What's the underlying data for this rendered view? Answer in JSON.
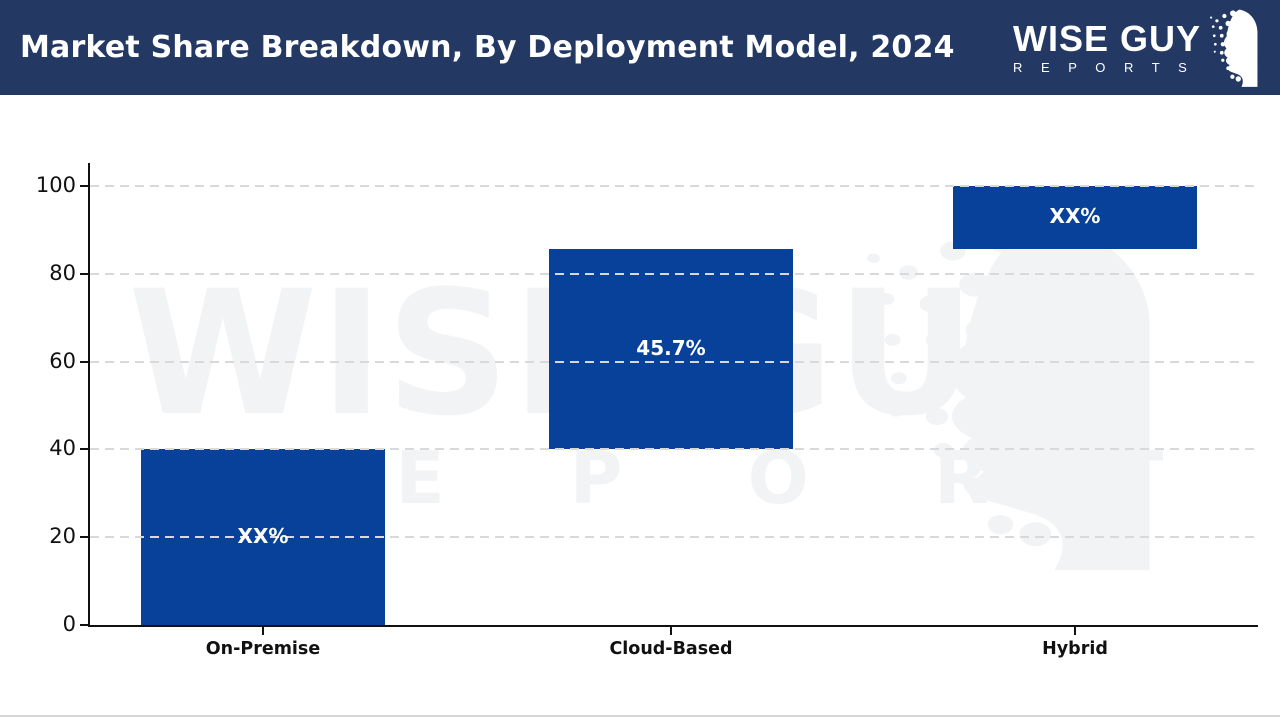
{
  "header": {
    "title": "Market Share Breakdown, By Deployment Model, 2024",
    "logo": {
      "name": "Wise Guy Reports",
      "line1": "WISE GUY",
      "line2": "R E P O R T S"
    }
  },
  "watermark": {
    "text_top": "WISE GUY",
    "text_bottom": "R E P O R T S"
  },
  "chart_data": {
    "type": "bar",
    "subtype": "waterfall",
    "title": "Market Share Breakdown, By Deployment Model, 2024",
    "categories": [
      "On-Premise",
      "Cloud-Based",
      "Hybrid"
    ],
    "series": [
      {
        "category": "On-Premise",
        "start": 0,
        "end": 40,
        "value": 40,
        "value_label": "XX%"
      },
      {
        "category": "Cloud-Based",
        "start": 40,
        "end": 85.7,
        "value": 45.7,
        "value_label": "45.7%"
      },
      {
        "category": "Hybrid",
        "start": 85.7,
        "end": 100,
        "value": 14.3,
        "value_label": "XX%"
      }
    ],
    "yticks": [
      0,
      20,
      40,
      60,
      80,
      100
    ],
    "ylim": [
      0,
      105
    ],
    "xlabel": "",
    "ylabel": "",
    "grid": {
      "horizontal": true,
      "style": "dashed"
    },
    "legend": "none"
  },
  "colors": {
    "header_bg": "#233863",
    "bar_fill": "#07419a",
    "grid_line": "#d9d9d9",
    "axis_line": "#111111",
    "tick_label": "#111111",
    "bar_value_label": "#ffffff",
    "watermark": "#f2f3f4",
    "logo": "#ffffff",
    "chart_bg": "#ffffff",
    "bottom_rule": "#d6d6d6"
  }
}
